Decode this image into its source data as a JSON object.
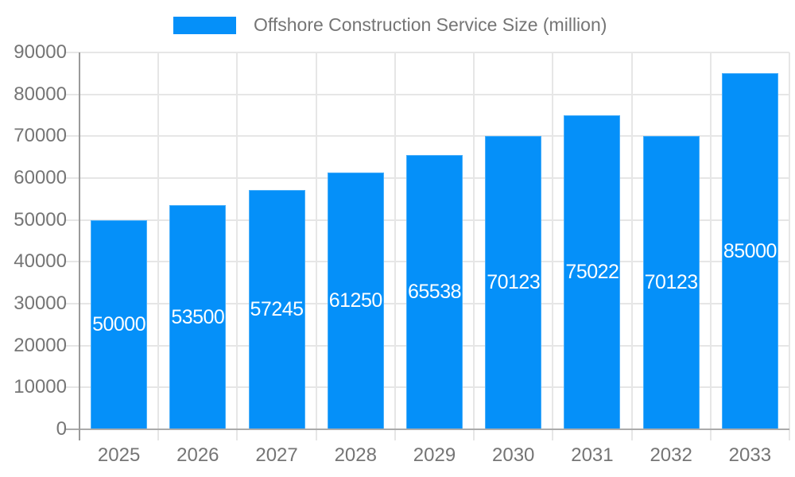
{
  "chart_data": {
    "type": "bar",
    "title": "Offshore Construction Service Size (million)",
    "legend": {
      "label": "Offshore Construction Service Size (million)",
      "position": "top"
    },
    "categories": [
      "2025",
      "2026",
      "2027",
      "2028",
      "2029",
      "2030",
      "2031",
      "2032",
      "2033"
    ],
    "values": [
      50000,
      53500,
      57245,
      61250,
      65538,
      70123,
      75022,
      70123,
      85000
    ],
    "xlabel": "",
    "ylabel": "",
    "ylim": [
      0,
      90000
    ],
    "yticks": [
      0,
      10000,
      20000,
      30000,
      40000,
      50000,
      60000,
      70000,
      80000,
      90000
    ],
    "grid": true,
    "colors": {
      "bar": "#0590f9",
      "value_label": "#ffffff",
      "axis_text": "#757575",
      "gridline": "#e6e6e6",
      "axis_line": "#9a9a9a",
      "baseline": "#ababab",
      "background": "#ffffff"
    }
  }
}
